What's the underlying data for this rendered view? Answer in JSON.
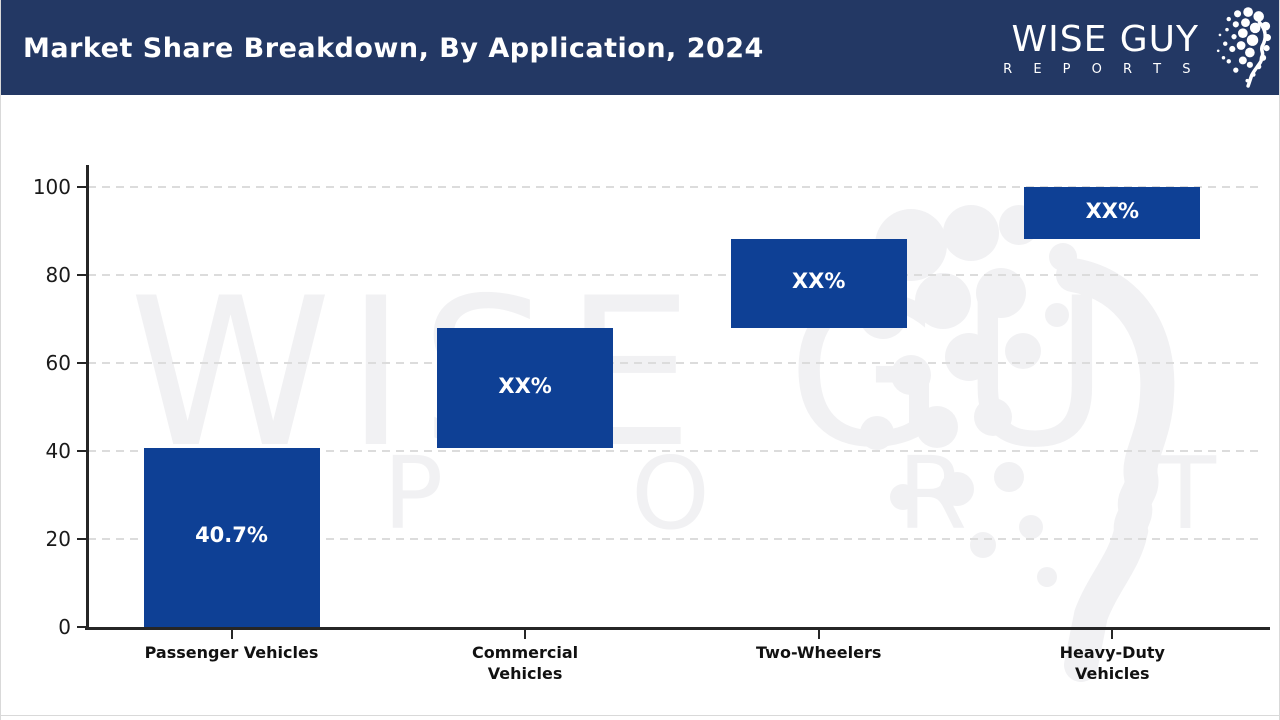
{
  "header": {
    "title": "Market Share Breakdown, By Application, 2024",
    "background_color": "#233864",
    "logo": {
      "line1": "WISE GUY",
      "line2": "R E P O R T S"
    }
  },
  "watermark": {
    "word": "WISE GU",
    "ports": "P O R T S"
  },
  "chart_data": {
    "type": "bar",
    "subtype": "waterfall",
    "title": "Market Share Breakdown, By Application, 2024",
    "categories": [
      "Passenger Vehicles",
      "Commercial Vehicles",
      "Two-Wheelers",
      "Heavy-Duty Vehicles"
    ],
    "category_label_lines": [
      [
        "Passenger Vehicles"
      ],
      [
        "Commercial",
        "Vehicles"
      ],
      [
        "Two-Wheelers"
      ],
      [
        "Heavy-Duty",
        "Vehicles"
      ]
    ],
    "series": [
      {
        "name": "Market Share %",
        "segments": [
          {
            "category": "Passenger Vehicles",
            "start": 0,
            "end": 40.7,
            "label": "40.7%"
          },
          {
            "category": "Commercial Vehicles",
            "start": 40.7,
            "end": 68.0,
            "label": "XX%"
          },
          {
            "category": "Two-Wheelers",
            "start": 68.0,
            "end": 88.2,
            "label": "XX%"
          },
          {
            "category": "Heavy-Duty Vehicles",
            "start": 88.2,
            "end": 100.0,
            "label": "XX%"
          }
        ]
      }
    ],
    "xlabel": "",
    "ylabel": "",
    "ylim": [
      0,
      100
    ],
    "yticks": [
      0,
      20,
      40,
      60,
      80,
      100
    ],
    "grid": "horizontal-dashed",
    "legend": "none",
    "bar_color": "#0e4095",
    "value_label_color": "#ffffff"
  }
}
